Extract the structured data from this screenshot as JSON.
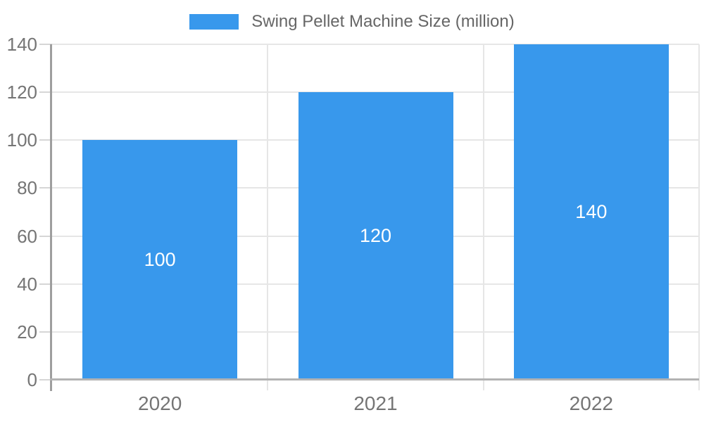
{
  "chart_data": {
    "type": "bar",
    "title": "",
    "legend_position": "top",
    "categories": [
      "2020",
      "2021",
      "2022"
    ],
    "series": [
      {
        "name": "Swing Pellet Machine Size (million)",
        "color": "#3898ec",
        "values": [
          100,
          120,
          140
        ],
        "data_labels": [
          "100",
          "120",
          "140"
        ]
      }
    ],
    "xlabel": "",
    "ylabel": "",
    "ylim": [
      0,
      140
    ],
    "yticks": [
      0,
      20,
      40,
      60,
      80,
      100,
      120,
      140
    ],
    "grid": true
  },
  "colors": {
    "bar": "#3898ec",
    "bar_label": "#ffffff",
    "gridline": "#e6e6e6",
    "tick": "#d6d6d6",
    "y_axis_line": "#9e9e9e",
    "x_axis_line": "#b3b3b3",
    "axis_label": "#757575",
    "legend_text": "#666666",
    "background": "#ffffff"
  }
}
